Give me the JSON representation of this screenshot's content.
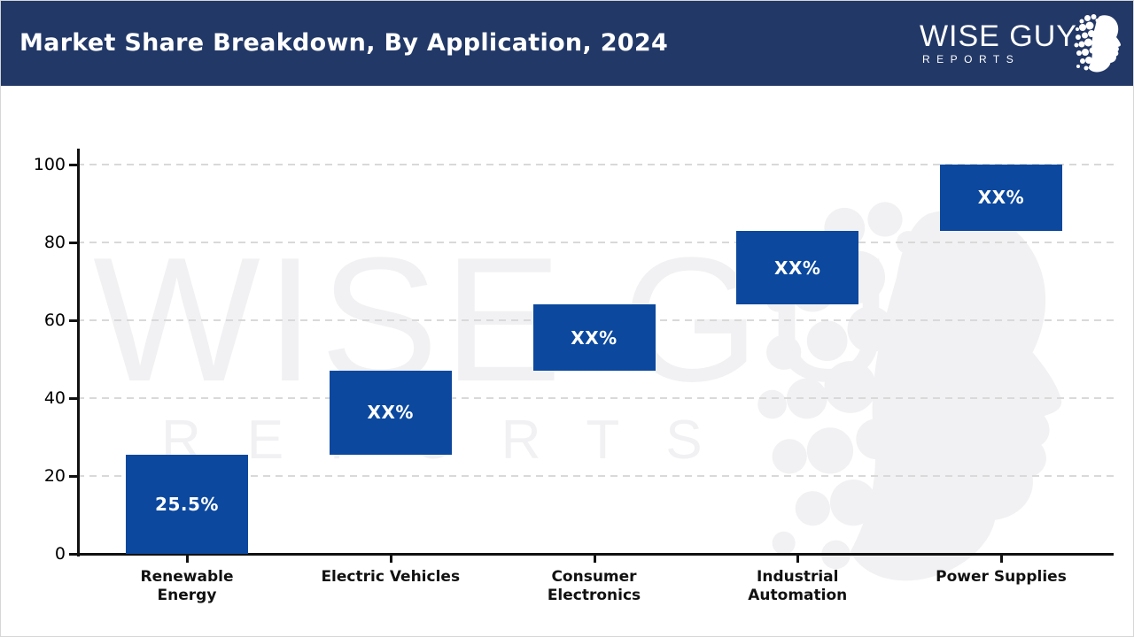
{
  "header": {
    "title": "Market Share Breakdown, By Application, 2024",
    "logo": {
      "name": "WISE GUY",
      "sub": "REPORTS"
    }
  },
  "watermark": {
    "name": "WISE GUY",
    "sub": "REPORTS"
  },
  "colors": {
    "header_bg": "#223867",
    "bar": "#0b489e",
    "grid": "#d9d9d9",
    "watermark": "#f1f1f3"
  },
  "chart_data": {
    "type": "bar",
    "subtype": "waterfall",
    "title": "Market Share Breakdown, By Application, 2024",
    "categories": [
      "Renewable Energy",
      "Electric Vehicles",
      "Consumer Electronics",
      "Industrial Automation",
      "Power Supplies"
    ],
    "series": [
      {
        "name": "Market Share",
        "segment_start": [
          0,
          25.5,
          47,
          64,
          83
        ],
        "segment_end": [
          25.5,
          47,
          64,
          83,
          100
        ]
      }
    ],
    "bar_labels": [
      "25.5%",
      "XX%",
      "XX%",
      "XX%",
      "XX%"
    ],
    "xlabel": "",
    "ylabel": "",
    "ylim": [
      0,
      100
    ],
    "yticks": [
      0,
      20,
      40,
      60,
      80,
      100
    ],
    "grid": {
      "horizontal": true,
      "style": "dashed"
    },
    "legend": "none"
  }
}
